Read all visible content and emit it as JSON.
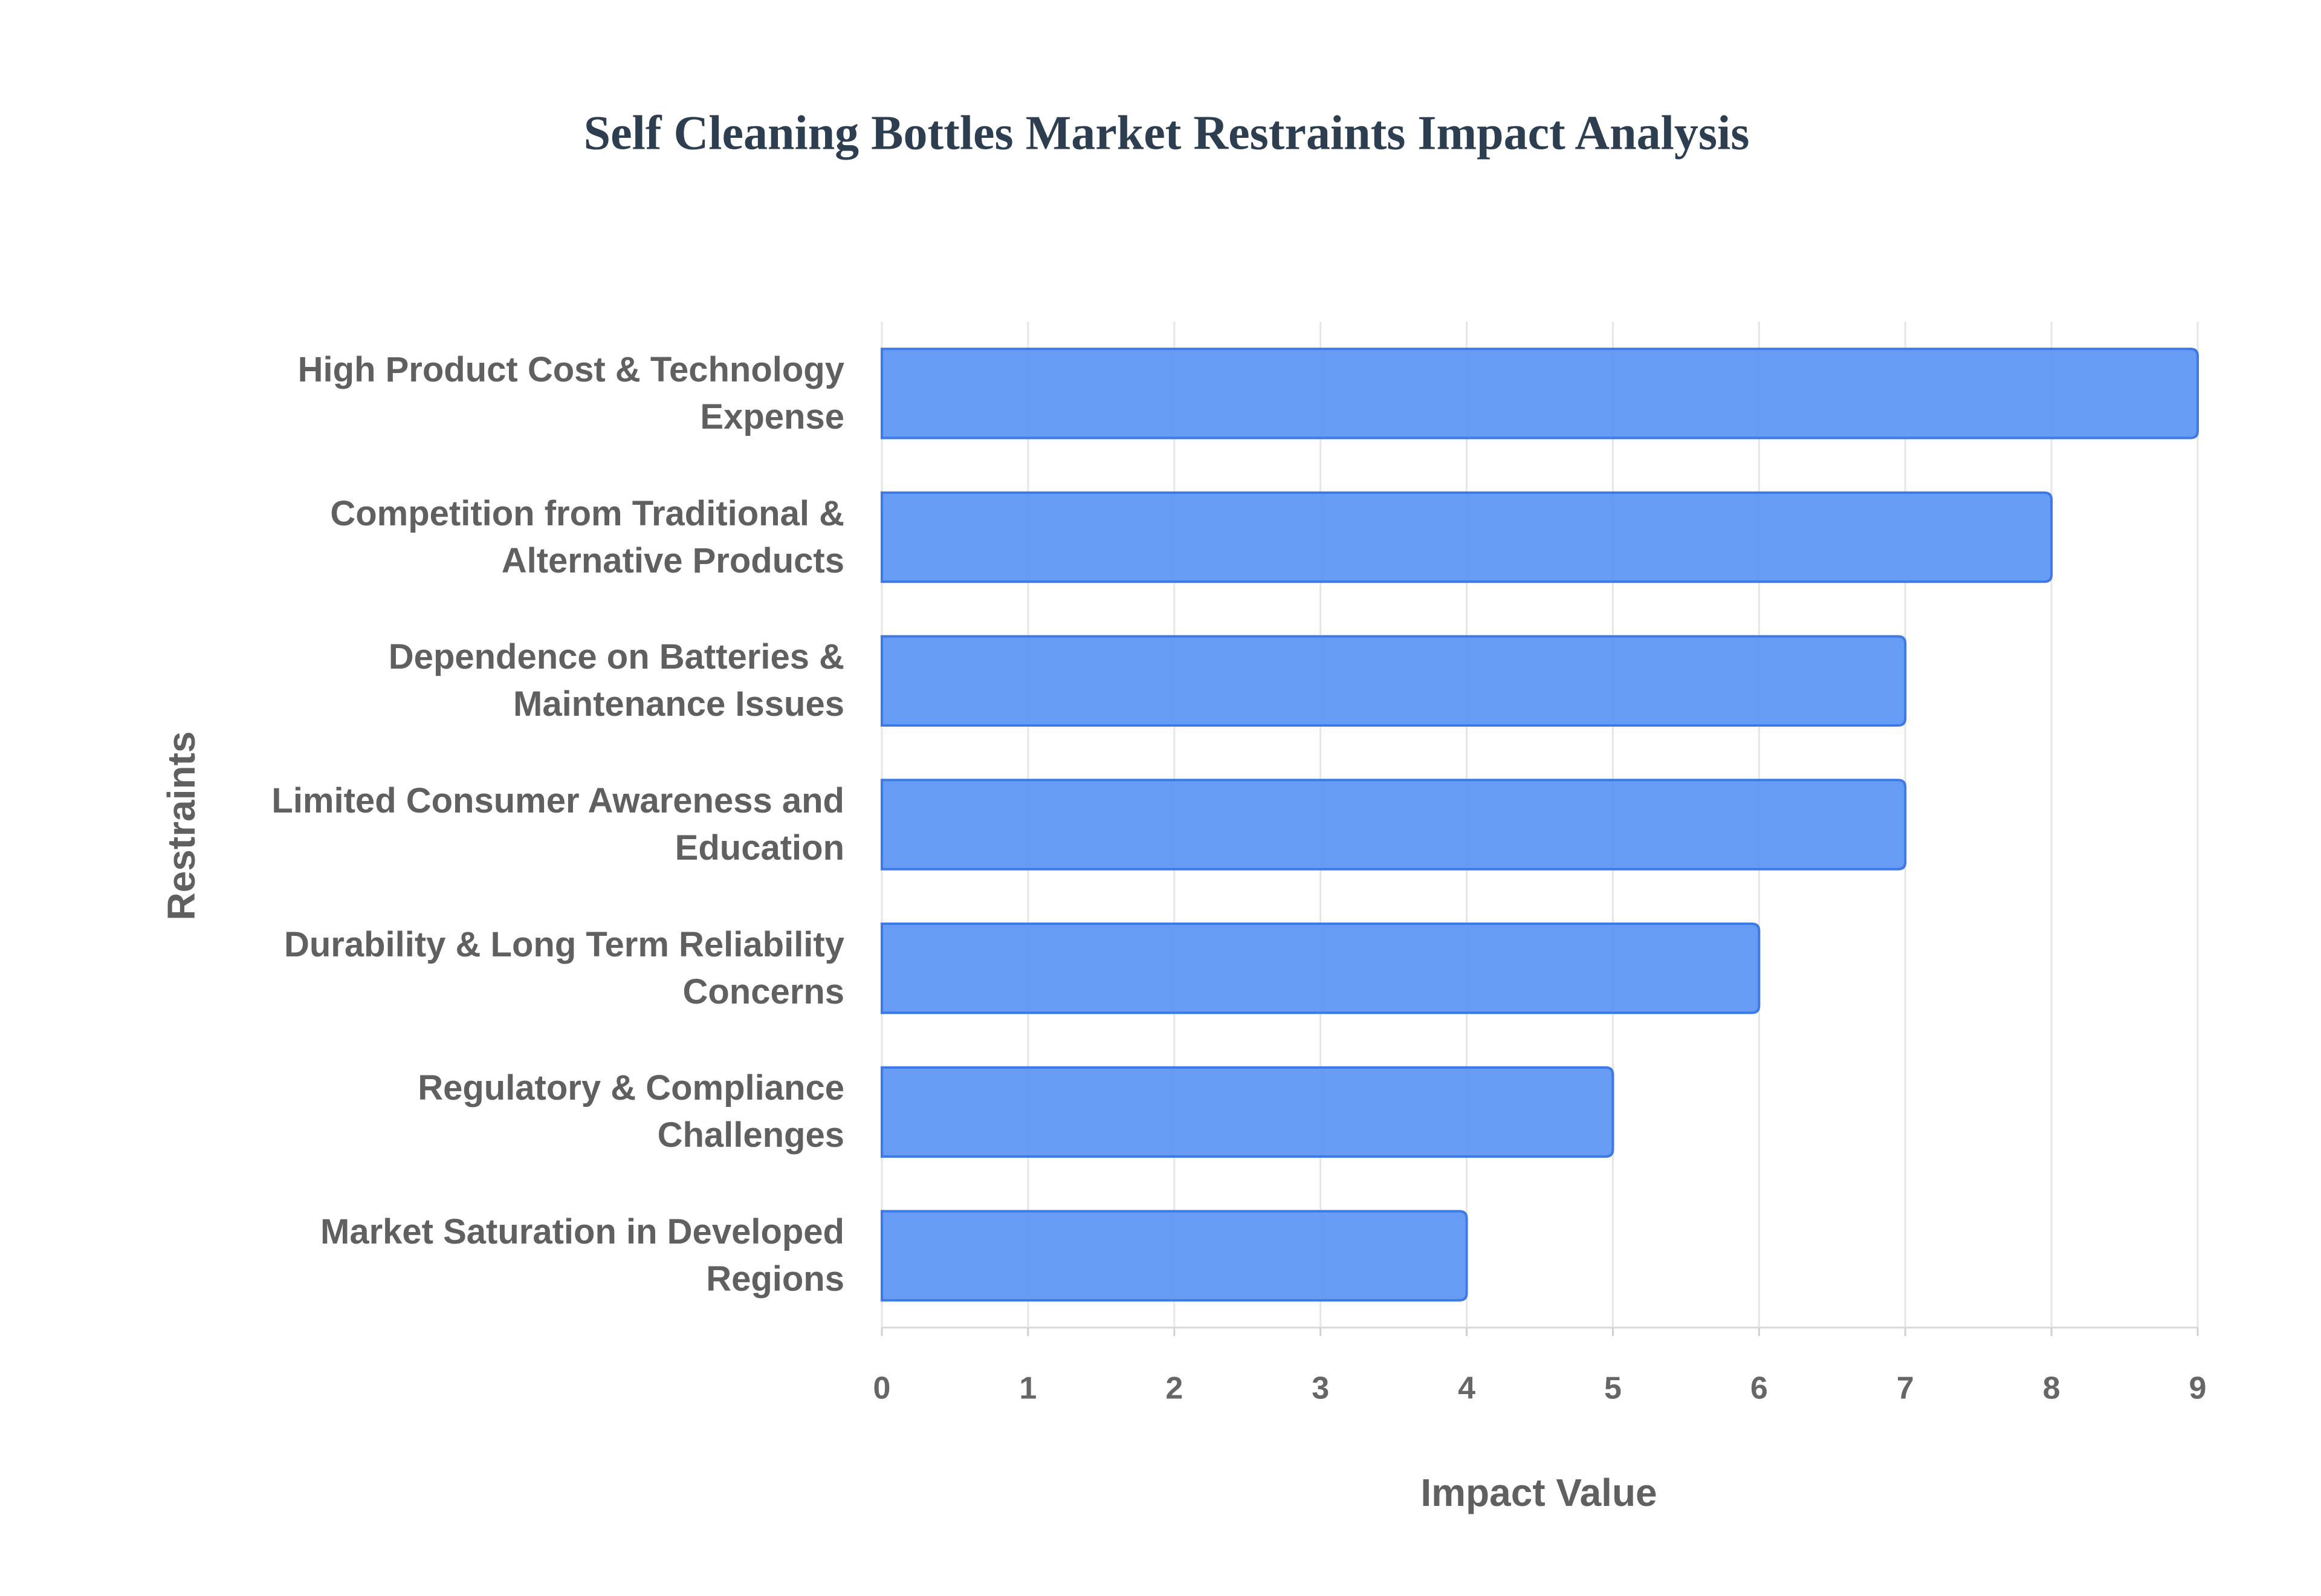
{
  "chart_data": {
    "type": "bar",
    "orientation": "horizontal",
    "title": "Self Cleaning Bottles Market Restraints Impact Analysis",
    "x_label": "Impact Value",
    "y_label": "Restraints",
    "categories": [
      "High Product Cost & Technology Expense",
      "Competition from Traditional & Alternative Products",
      "Dependence on Batteries & Maintenance Issues",
      "Limited Consumer Awareness and Education",
      "Durability & Long Term Reliability Concerns",
      "Regulatory & Compliance Challenges",
      "Market Saturation in Developed Regions"
    ],
    "values": [
      9,
      8,
      7,
      7,
      6,
      5,
      4
    ],
    "color": "#5f97f4",
    "xlim": [
      0,
      9
    ],
    "xticks": [
      0,
      1,
      2,
      3,
      4,
      5,
      6,
      7,
      8,
      9
    ],
    "grid": true
  }
}
